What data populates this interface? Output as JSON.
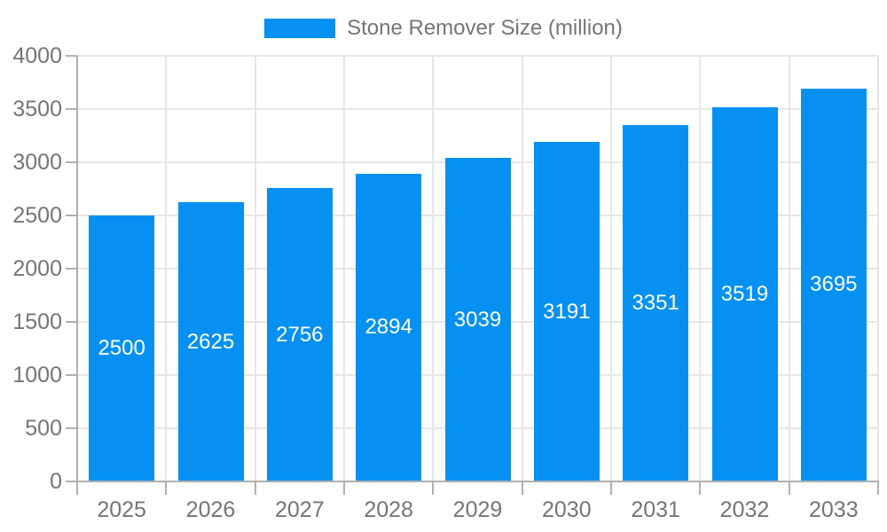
{
  "legend": {
    "label": "Stone Remover Size (million)"
  },
  "chart_data": {
    "type": "bar",
    "title": "Stone Remover Size (million)",
    "categories": [
      "2025",
      "2026",
      "2027",
      "2028",
      "2029",
      "2030",
      "2031",
      "2032",
      "2033"
    ],
    "values": [
      2500,
      2625,
      2756,
      2894,
      3039,
      3191,
      3351,
      3519,
      3695
    ],
    "xlabel": "",
    "ylabel": "",
    "ylim": [
      0,
      4000
    ],
    "ytick_step": 500,
    "ytick_labels": [
      "0",
      "500",
      "1000",
      "1500",
      "2000",
      "2500",
      "3000",
      "3500",
      "4000"
    ],
    "grid": true,
    "legend_position": "top-center",
    "bar_labels_inside": true,
    "colors": {
      "bar": "#0691f2",
      "grid": "#e6e6e6",
      "axis": "#b0b0b0",
      "tick_text": "#757575",
      "bar_label_text": "#ffffff",
      "background": "#ffffff"
    }
  }
}
